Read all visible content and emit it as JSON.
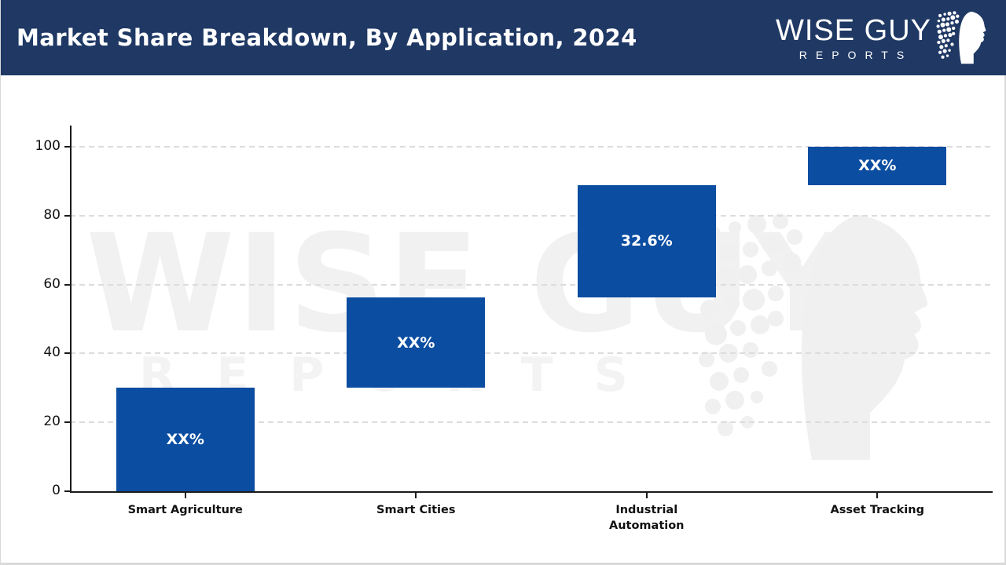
{
  "header": {
    "title": "Market Share Breakdown, By Application, 2024",
    "logo": {
      "line1": "WISE GUY",
      "line2": "REPORTS"
    }
  },
  "watermark": {
    "line1": "WISE GUY",
    "line2": "REPORTS"
  },
  "colors": {
    "header_bg": "#1f3864",
    "bar_fill": "#0b4da1",
    "bar_label": "#ffffff",
    "gridline": "#dcdcdc",
    "axis": "#1a1a1a",
    "watermark": "#f0f0f0"
  },
  "chart_data": {
    "type": "bar",
    "subtype": "floating-waterfall",
    "title": "Market Share Breakdown, By Application, 2024",
    "categories": [
      "Smart Agriculture",
      "Smart Cities",
      "Industrial\nAutomation",
      "Asset Tracking"
    ],
    "segments": [
      {
        "category": "Smart Agriculture",
        "start": 0,
        "end": 30,
        "label": "XX%"
      },
      {
        "category": "Smart Cities",
        "start": 30,
        "end": 56.3,
        "label": "XX%"
      },
      {
        "category": "Industrial Automation",
        "start": 56.3,
        "end": 88.9,
        "label": "32.6%"
      },
      {
        "category": "Asset Tracking",
        "start": 88.9,
        "end": 100,
        "label": "XX%"
      }
    ],
    "xlabel": "",
    "ylabel": "",
    "ylim": [
      0,
      100
    ],
    "yticks": [
      0,
      20,
      40,
      60,
      80,
      100
    ],
    "grid": "horizontal-dashed",
    "legend": "none"
  }
}
